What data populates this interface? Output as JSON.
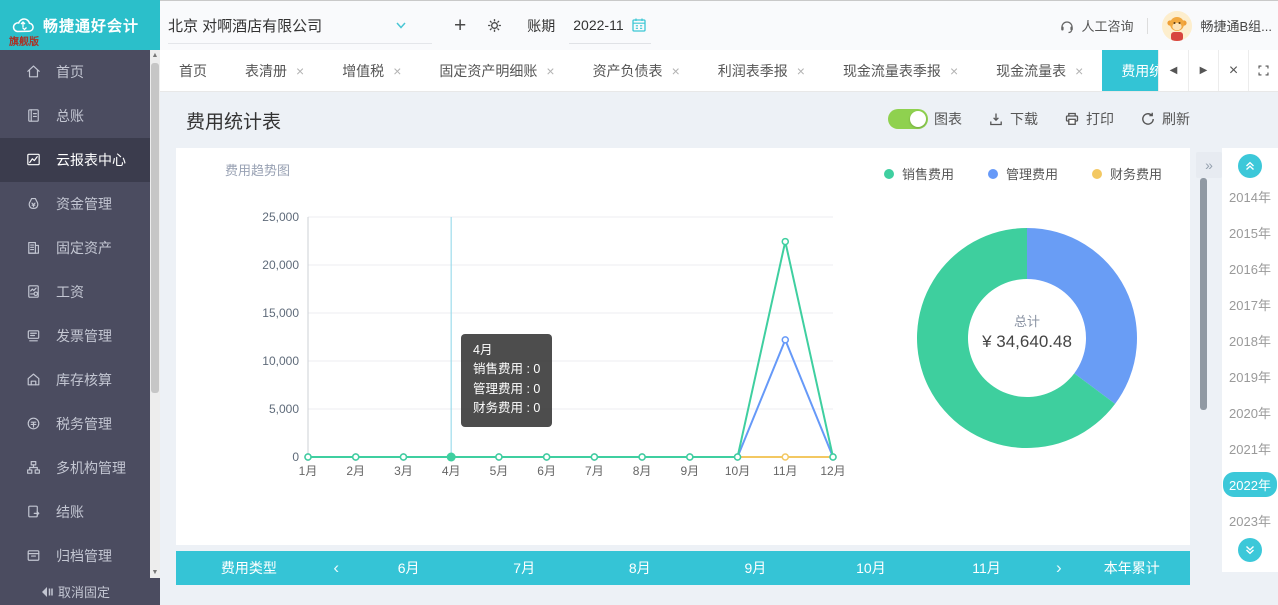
{
  "colors": {
    "accent": "#33c4d5",
    "logo_bg": "#2bbfca",
    "sidebar_bg": "#4b4c60",
    "sidebar_active_bg": "#3b3c4d",
    "toggle_on_green": "#8fd14f",
    "series_green": "#3fcfa0",
    "series_blue": "#6699f8",
    "series_yellow": "#f3c862",
    "donut_green": "#3ecf9e",
    "donut_blue": "#699df5",
    "year_active_bg": "#3cc8d9"
  },
  "icons": {
    "plus": "+",
    "prev_tab": "◀",
    "next_tab": "▶",
    "close": "×",
    "collapse": "»",
    "scroll_up": "▲",
    "scroll_down": "▼"
  },
  "logo": {
    "title": "畅捷通好会计",
    "subtitle": "旗舰版"
  },
  "header": {
    "company": "北京 对啊酒店有限公司",
    "period_label": "账期",
    "period_value": "2022-11",
    "support_label": "人工咨询",
    "username": "畅捷通B组..."
  },
  "sidebar": {
    "items": [
      {
        "id": "home",
        "label": "首页",
        "icon": "home-icon",
        "active": false
      },
      {
        "id": "general-ledger",
        "label": "总账",
        "icon": "ledger-icon",
        "active": false
      },
      {
        "id": "cloud-reports",
        "label": "云报表中心",
        "icon": "report-icon",
        "active": true
      },
      {
        "id": "funds",
        "label": "资金管理",
        "icon": "funds-icon",
        "active": false
      },
      {
        "id": "fixed-assets",
        "label": "固定资产",
        "icon": "building-icon",
        "active": false
      },
      {
        "id": "salary",
        "label": "工资",
        "icon": "salary-icon",
        "active": false
      },
      {
        "id": "invoice",
        "label": "发票管理",
        "icon": "invoice-icon",
        "active": false
      },
      {
        "id": "inventory",
        "label": "库存核算",
        "icon": "inventory-icon",
        "active": false
      },
      {
        "id": "tax",
        "label": "税务管理",
        "icon": "tax-icon",
        "active": false
      },
      {
        "id": "multi-org",
        "label": "多机构管理",
        "icon": "org-icon",
        "active": false
      },
      {
        "id": "closing",
        "label": "结账",
        "icon": "closing-icon",
        "active": false
      },
      {
        "id": "archive",
        "label": "归档管理",
        "icon": "archive-icon",
        "active": false
      }
    ],
    "unpin_label": "取消固定"
  },
  "tabs": {
    "items": [
      {
        "label": "首页",
        "closable": false,
        "active": false
      },
      {
        "label": "表清册",
        "closable": true,
        "active": false
      },
      {
        "label": "增值税",
        "closable": true,
        "active": false
      },
      {
        "label": "固定资产明细账",
        "closable": true,
        "active": false
      },
      {
        "label": "资产负债表",
        "closable": true,
        "active": false
      },
      {
        "label": "利润表季报",
        "closable": true,
        "active": false
      },
      {
        "label": "现金流量表季报",
        "closable": true,
        "active": false
      },
      {
        "label": "现金流量表",
        "closable": true,
        "active": false
      },
      {
        "label": "费用统计表",
        "closable": true,
        "active": true
      }
    ]
  },
  "page": {
    "title": "费用统计表",
    "toggle_label": "图表",
    "download_label": "下载",
    "print_label": "打印",
    "refresh_label": "刷新"
  },
  "tooltip": {
    "title": "4月",
    "rows": [
      "销售费用 : 0",
      "管理费用 : 0",
      "财务费用 : 0"
    ]
  },
  "donut_center": {
    "label": "总计",
    "value": "¥ 34,640.48"
  },
  "years": {
    "items": [
      "2014年",
      "2015年",
      "2016年",
      "2017年",
      "2018年",
      "2019年",
      "2020年",
      "2021年",
      "2022年",
      "2023年"
    ],
    "active": "2022年"
  },
  "table_header": {
    "first_col": "费用类型",
    "months": [
      "6月",
      "7月",
      "8月",
      "9月",
      "10月",
      "11月"
    ],
    "last_col": "本年累计",
    "prev_icon": "‹",
    "next_icon": "›"
  },
  "chart_data": [
    {
      "type": "line",
      "title": "费用趋势图",
      "categories": [
        "1月",
        "2月",
        "3月",
        "4月",
        "5月",
        "6月",
        "7月",
        "8月",
        "9月",
        "10月",
        "11月",
        "12月"
      ],
      "series": [
        {
          "name": "销售费用",
          "color": "#3fcfa0",
          "values": [
            0,
            0,
            0,
            0,
            0,
            0,
            0,
            0,
            0,
            0,
            22440.48,
            0
          ]
        },
        {
          "name": "管理费用",
          "color": "#6699f8",
          "values": [
            0,
            0,
            0,
            0,
            0,
            0,
            0,
            0,
            0,
            0,
            12200,
            0
          ]
        },
        {
          "name": "财务费用",
          "color": "#f3c862",
          "values": [
            0,
            0,
            0,
            0,
            0,
            0,
            0,
            0,
            0,
            0,
            0,
            0
          ]
        }
      ],
      "ylim": [
        0,
        25000
      ],
      "yticks": [
        0,
        5000,
        10000,
        15000,
        20000,
        25000
      ],
      "ytick_labels": [
        "0",
        "5,000",
        "10,000",
        "15,000",
        "20,000",
        "25,000"
      ],
      "grid": true,
      "legend_position": "top-right",
      "hover": {
        "category_index": 3,
        "category": "4月"
      }
    },
    {
      "type": "pie",
      "subtype": "donut",
      "labels": [
        "销售费用",
        "管理费用"
      ],
      "values": [
        22440.48,
        12200
      ],
      "colors": [
        "#3ecf9e",
        "#699df5"
      ],
      "total": 34640.48,
      "center_label": "总计",
      "center_value": "¥ 34,640.48",
      "legend_position": "top-right"
    }
  ]
}
